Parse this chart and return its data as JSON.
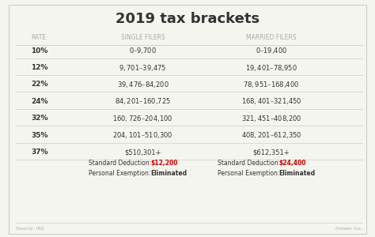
{
  "title": "2019 tax brackets",
  "background_color": "#f5f5f0",
  "rate_col_header": "RATE",
  "single_col_header": "SINGLE FILERS",
  "married_col_header": "MARRIED FILERS",
  "rates": [
    "10%",
    "12%",
    "22%",
    "24%",
    "32%",
    "35%",
    "37%"
  ],
  "single_ranges": [
    "$0 – $9,700",
    "$9,701 – $39,475",
    "$39,476 – $84,200",
    "$84,201 – $160,725",
    "$160,726 – $204,100",
    "$204,101 – $510,300",
    "$510,301+"
  ],
  "married_ranges": [
    "$0 – $19,400",
    "$19,401 – $78,950",
    "$78,951 – $168,400",
    "$168,401 – $321,450",
    "$321,451 – $408,200",
    "$408,201 – $612,350",
    "$612,351+"
  ],
  "single_deduction_label": "Standard Deduction: ",
  "single_deduction_value": "$12,200",
  "single_exemption_label": "Personal Exemption: ",
  "single_exemption_value": "Eliminated",
  "married_deduction_label": "Standard Deduction: ",
  "married_deduction_value": "$24,400",
  "married_exemption_label": "Personal Exemption: ",
  "married_exemption_value": "Eliminated",
  "source_text": "Source: IRS",
  "brand_text": "Insider Inc.",
  "red_color": "#cc0000",
  "text_color": "#333333",
  "line_color": "#cccccc",
  "header_text_color": "#aaaaaa"
}
